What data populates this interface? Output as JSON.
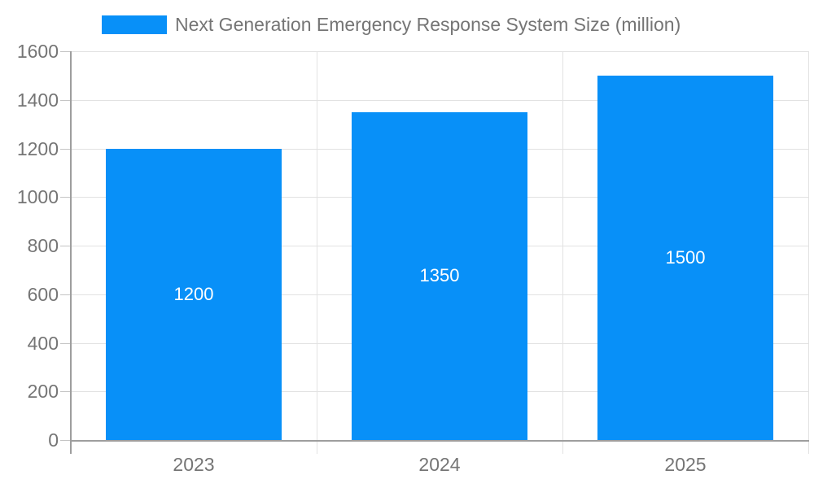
{
  "legend": {
    "label": "Next Generation Emergency Response System Size (million)"
  },
  "chart_data": {
    "type": "bar",
    "title": "Next Generation Emergency Response System Size (million)",
    "categories": [
      "2023",
      "2024",
      "2025"
    ],
    "values": [
      1200,
      1350,
      1500
    ],
    "value_labels": [
      "1200",
      "1350",
      "1500"
    ],
    "xlabel": "",
    "ylabel": "",
    "ylim": [
      0,
      1600
    ],
    "ytick_step": 200,
    "ytick_labels": [
      "0",
      "200",
      "400",
      "600",
      "800",
      "1000",
      "1200",
      "1400",
      "1600"
    ],
    "grid": true,
    "legend_position": "top"
  },
  "colors": {
    "bar": "#0890F8",
    "label_text": "#757575",
    "value_label_text": "#ffffff",
    "axis_line": "#9e9e9e",
    "gridline": "#e2e2e2",
    "tick": "#c4c4c4",
    "background": "#ffffff"
  }
}
